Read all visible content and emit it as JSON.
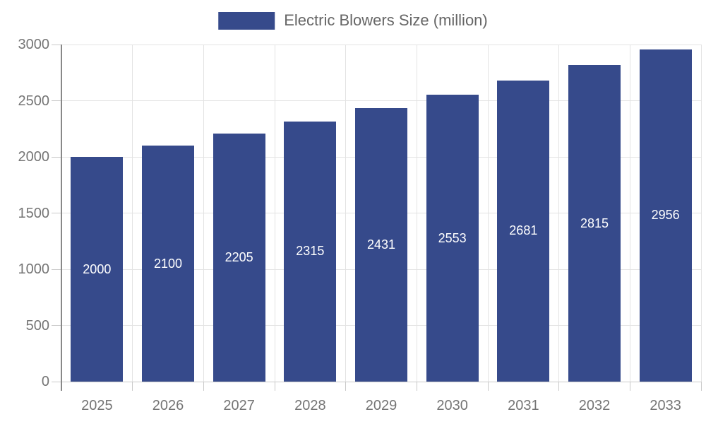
{
  "legend": {
    "label": "Electric Blowers Size (million)"
  },
  "colors": {
    "bar": "#364A8B",
    "bar_label": "#ffffff",
    "grid": "#e3e3e3",
    "axis_left": "#888888",
    "axis_bottom": "#c9c9c9",
    "tick": "#c9c9c9",
    "label_text": "#757575",
    "legend_text": "#666666",
    "background": "#ffffff"
  },
  "chart_data": {
    "type": "bar",
    "title": "Electric Blowers Size (million)",
    "categories": [
      "2025",
      "2026",
      "2027",
      "2028",
      "2029",
      "2030",
      "2031",
      "2032",
      "2033"
    ],
    "values": [
      2000,
      2100,
      2205,
      2315,
      2431,
      2553,
      2681,
      2815,
      2956
    ],
    "bar_value_labels": [
      "2000",
      "2100",
      "2205",
      "2315",
      "2431",
      "2553",
      "2681",
      "2815",
      "2956"
    ],
    "xlabel": "",
    "ylabel": "",
    "ylim": [
      0,
      3000
    ],
    "yticks": [
      0,
      500,
      1000,
      1500,
      2000,
      2500,
      3000
    ],
    "grid": true,
    "legend_position": "top-center",
    "bar_label_position": "center-inside",
    "bar_label_color": "#ffffff"
  }
}
